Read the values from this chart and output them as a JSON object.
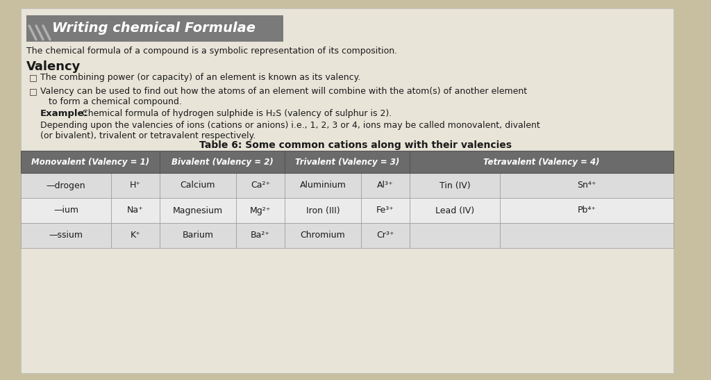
{
  "title": "Writing chemical Formulae",
  "subtitle": "The chemical formula of a compound is a symbolic representation of its composition.",
  "valency_heading": "Valency",
  "bullet1": "The combining power (or capacity) of an element is known as its valency.",
  "bullet2": "Valency can be used to find out how the atoms of an element will combine with the atom(s) of another element\n    to form a chemical compound.",
  "example_bold": "Example:",
  "example_text": " Chemical formula of hydrogen sulphide is H₂S (valency of sulphur is 2).",
  "para": "Depending upon the valencies of ions (cations or anions) i.e., 1, 2, 3 or 4, ions may be called monovalent, divalent\n(or bivalent), trivalent or tetravalent respectively.",
  "table_title": "Table 6: Some common cations along with their valencies",
  "header_cols": [
    "Monovalent (Valency = 1)",
    "Bivalent (Valency = 2)",
    "Trivalent (Valency = 3)",
    "Tetravalent (Valency = 4)"
  ],
  "header_bg": "#6b6b6b",
  "header_fg": "#ffffff",
  "row_odd_bg": "#dcdcdc",
  "row_even_bg": "#ebebeb",
  "table_rows": [
    [
      "—drogen",
      "H⁺",
      "Calcium",
      "Ca²⁺",
      "Aluminium",
      "Al³⁺",
      "Tin (IV)",
      "Sn⁴⁺"
    ],
    [
      "—ium",
      "Na⁺",
      "Magnesium",
      "Mg²⁺",
      "Iron (III)",
      "Fe³⁺",
      "Lead (IV)",
      "Pb⁴⁺"
    ],
    [
      "—ssium",
      "K⁺",
      "Barium",
      "Ba²⁺",
      "Chromium",
      "Cr³⁺",
      "",
      ""
    ]
  ],
  "page_bg": "#c8bfa0",
  "content_bg": "#e8e4d8",
  "title_bg": "#7a7a7a",
  "slash_color": "#555555"
}
